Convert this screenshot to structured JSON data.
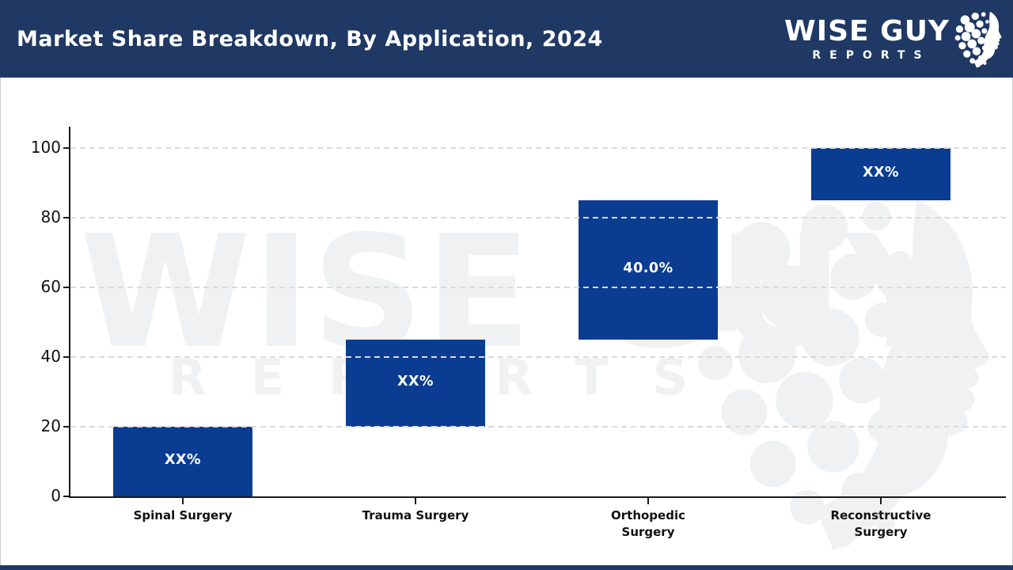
{
  "header": {
    "title": "Market Share Breakdown, By Application, 2024",
    "logo": {
      "primary": "WISE GUY",
      "secondary": "REPORTS"
    }
  },
  "watermark": {
    "primary": "WISE GUY",
    "secondary": "REPORTS"
  },
  "colors": {
    "header_bg": "#1f3864",
    "footer_bg": "#1f3864",
    "bar_fill": "#0a3d91",
    "bar_label_text": "#ffffff",
    "grid_line": "#dadada",
    "axis_line": "#1a1a1a",
    "tick_label_text": "#111111",
    "watermark": "#f0f1f2",
    "chart_border": "#c9c9c9"
  },
  "chart_data": {
    "type": "bar",
    "subtype": "floating-segment-bars",
    "title": "Market Share Breakdown, By Application, 2024",
    "categories": [
      "Spinal Surgery",
      "Trauma Surgery",
      "Orthopedic Surgery",
      "Reconstructive Surgery"
    ],
    "segments": [
      {
        "category": "Spinal Surgery",
        "from": 0,
        "to": 20,
        "label": "XX%"
      },
      {
        "category": "Trauma Surgery",
        "from": 20,
        "to": 45,
        "label": "XX%"
      },
      {
        "category": "Orthopedic Surgery",
        "from": 45,
        "to": 85,
        "label": "40.0%"
      },
      {
        "category": "Reconstructive Surgery",
        "from": 85,
        "to": 100,
        "label": "XX%"
      }
    ],
    "yticks": [
      0,
      20,
      40,
      60,
      80,
      100
    ],
    "ylim": [
      0,
      106
    ],
    "xlabel": "",
    "ylabel": "",
    "grid": "horizontal-dashed",
    "legend": "none"
  }
}
